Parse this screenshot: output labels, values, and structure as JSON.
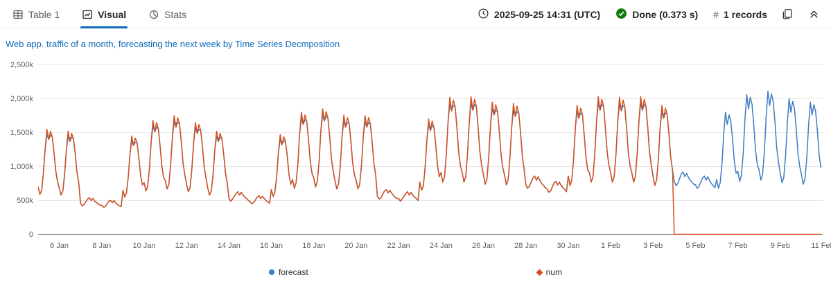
{
  "header": {
    "tabs": [
      {
        "label": "Table 1"
      },
      {
        "label": "Visual"
      },
      {
        "label": "Stats"
      }
    ],
    "timestamp": "2025-09-25 14:31 (UTC)",
    "status_text": "Done (0.373 s)",
    "hash_glyph": "#",
    "records_text": "1 records"
  },
  "chart_data": {
    "type": "line",
    "title": "Web app. traffic of a month, forecasting the next week by Time Series Decmposition",
    "unit": "thousands (k)",
    "y_axis": {
      "max_k": 2500,
      "tick_values_k": [
        0,
        500,
        1000,
        1500,
        2000,
        2500
      ],
      "tick_labels": [
        "0",
        "500k",
        "1,000k",
        "1,500k",
        "2,000k",
        "2,500k"
      ]
    },
    "x_axis": {
      "tick_labels": [
        "6 Jan",
        "8 Jan",
        "10 Jan",
        "12 Jan",
        "14 Jan",
        "16 Jan",
        "18 Jan",
        "20 Jan",
        "22 Jan",
        "24 Jan",
        "26 Jan",
        "28 Jan",
        "30 Jan",
        "1 Feb",
        "3 Feb",
        "5 Feb",
        "7 Feb",
        "9 Feb",
        "11 Feb"
      ],
      "first_tick_day_offset": 1,
      "tick_day_step": 2,
      "total_days": 37,
      "points_per_day": 12
    },
    "legend_position": "bottom",
    "series": [
      {
        "name": "forecast",
        "color": "#3d7bc4",
        "marker": "circle",
        "values_k": [
          700,
          590,
          650,
          900,
          1270,
          1470,
          1400,
          1460,
          1440,
          1210,
          930,
          780,
          680,
          580,
          640,
          880,
          1250,
          1440,
          1370,
          1430,
          1410,
          1190,
          910,
          760,
          460,
          420,
          440,
          480,
          520,
          540,
          500,
          530,
          490,
          470,
          450,
          430,
          430,
          400,
          410,
          450,
          490,
          500,
          470,
          500,
          460,
          440,
          420,
          410,
          650,
          550,
          610,
          840,
          1190,
          1380,
          1310,
          1360,
          1350,
          1130,
          870,
          730,
          760,
          640,
          710,
          970,
          1380,
          1600,
          1510,
          1580,
          1560,
          1310,
          1010,
          840,
          790,
          670,
          740,
          1020,
          1440,
          1660,
          1580,
          1650,
          1630,
          1370,
          1050,
          880,
          740,
          630,
          690,
          960,
          1350,
          1570,
          1490,
          1550,
          1530,
          1290,
          990,
          830,
          680,
          580,
          640,
          880,
          1250,
          1440,
          1370,
          1430,
          1410,
          1190,
          910,
          760,
          530,
          490,
          520,
          560,
          600,
          630,
          580,
          620,
          580,
          550,
          530,
          500,
          480,
          450,
          470,
          510,
          550,
          570,
          530,
          560,
          530,
          500,
          480,
          460,
          660,
          560,
          620,
          850,
          1210,
          1400,
          1320,
          1380,
          1370,
          1150,
          880,
          740,
          810,
          680,
          760,
          1040,
          1480,
          1710,
          1620,
          1690,
          1670,
          1400,
          1080,
          900,
          830,
          700,
          780,
          1070,
          1520,
          1760,
          1670,
          1740,
          1720,
          1440,
          1110,
          930,
          790,
          670,
          740,
          1020,
          1440,
          1670,
          1580,
          1650,
          1640,
          1370,
          1060,
          880,
          790,
          670,
          740,
          1020,
          1440,
          1660,
          1580,
          1650,
          1630,
          1370,
          1050,
          880,
          560,
          520,
          540,
          590,
          640,
          660,
          610,
          650,
          610,
          580,
          550,
          530,
          530,
          490,
          520,
          560,
          600,
          630,
          580,
          620,
          580,
          550,
          530,
          500,
          770,
          650,
          710,
          990,
          1390,
          1620,
          1530,
          1600,
          1580,
          1330,
          1020,
          850,
          910,
          770,
          850,
          1170,
          1660,
          1920,
          1820,
          1900,
          1880,
          1580,
          1210,
          1010,
          910,
          770,
          850,
          1180,
          1660,
          1930,
          1830,
          1910,
          1890,
          1580,
          1220,
          1020,
          880,
          740,
          820,
          1130,
          1600,
          1850,
          1760,
          1830,
          1810,
          1520,
          1170,
          980,
          870,
          730,
          810,
          1120,
          1580,
          1830,
          1740,
          1810,
          1790,
          1510,
          1160,
          970,
          730,
          680,
          710,
          770,
          830,
          860,
          800,
          850,
          790,
          750,
          720,
          690,
          670,
          620,
          640,
          700,
          760,
          780,
          730,
          770,
          720,
          690,
          660,
          630,
          860,
          720,
          800,
          1100,
          1560,
          1810,
          1710,
          1790,
          1770,
          1480,
          1140,
          950,
          910,
          770,
          850,
          1180,
          1660,
          1930,
          1830,
          1910,
          1890,
          1580,
          1220,
          1020,
          910,
          770,
          850,
          1170,
          1660,
          1920,
          1820,
          1900,
          1880,
          1580,
          1210,
          1010,
          910,
          770,
          850,
          1180,
          1660,
          1930,
          1830,
          1910,
          1890,
          1580,
          1220,
          1020,
          860,
          720,
          800,
          1100,
          1560,
          1810,
          1710,
          1790,
          1770,
          1480,
          1140,
          950,
          780,
          720,
          750,
          820,
          890,
          920,
          850,
          900,
          840,
          800,
          770,
          740,
          730,
          680,
          710,
          770,
          830,
          860,
          800,
          850,
          790,
          750,
          720,
          690,
          810,
          680,
          760,
          1040,
          1480,
          1800,
          1620,
          1760,
          1670,
          1400,
          1080,
          900,
          930,
          780,
          870,
          1190,
          1690,
          2060,
          1850,
          2020,
          1920,
          1610,
          1240,
          1030,
          950,
          800,
          890,
          1220,
          1730,
          2110,
          1900,
          2070,
          1960,
          1650,
          1270,
          1060,
          900,
          760,
          840,
          1160,
          1640,
          2000,
          1800,
          1960,
          1860,
          1560,
          1200,
          1000,
          880,
          740,
          820,
          1130,
          1600,
          1950,
          1760,
          1910,
          1810,
          1520,
          1170,
          980
        ]
      },
      {
        "name": "num",
        "color": "#d4511e",
        "marker": "diamond",
        "values_k": [
          700,
          590,
          650,
          900,
          1270,
          1550,
          1400,
          1520,
          1440,
          1210,
          930,
          780,
          680,
          580,
          640,
          880,
          1250,
          1520,
          1370,
          1490,
          1410,
          1190,
          910,
          760,
          460,
          420,
          440,
          480,
          520,
          540,
          500,
          530,
          490,
          470,
          450,
          430,
          430,
          400,
          410,
          450,
          490,
          500,
          470,
          500,
          460,
          440,
          420,
          410,
          650,
          550,
          610,
          840,
          1190,
          1450,
          1310,
          1420,
          1350,
          1130,
          870,
          730,
          760,
          640,
          710,
          970,
          1380,
          1680,
          1510,
          1650,
          1560,
          1310,
          1010,
          840,
          790,
          670,
          740,
          1020,
          1440,
          1750,
          1580,
          1720,
          1630,
          1370,
          1050,
          880,
          740,
          630,
          690,
          960,
          1350,
          1650,
          1490,
          1620,
          1530,
          1290,
          990,
          830,
          680,
          580,
          640,
          880,
          1250,
          1520,
          1370,
          1490,
          1410,
          1190,
          910,
          760,
          530,
          490,
          520,
          560,
          600,
          630,
          580,
          620,
          580,
          550,
          530,
          500,
          480,
          450,
          470,
          510,
          550,
          570,
          530,
          560,
          530,
          500,
          480,
          460,
          660,
          560,
          620,
          850,
          1210,
          1470,
          1320,
          1440,
          1370,
          1150,
          880,
          740,
          810,
          680,
          760,
          1040,
          1480,
          1800,
          1620,
          1760,
          1670,
          1400,
          1080,
          900,
          830,
          700,
          780,
          1070,
          1520,
          1850,
          1670,
          1810,
          1720,
          1440,
          1110,
          930,
          790,
          670,
          740,
          1020,
          1440,
          1760,
          1580,
          1720,
          1640,
          1370,
          1060,
          880,
          790,
          670,
          740,
          1020,
          1440,
          1750,
          1580,
          1720,
          1630,
          1370,
          1050,
          880,
          560,
          520,
          540,
          590,
          640,
          660,
          610,
          650,
          610,
          580,
          550,
          530,
          530,
          490,
          520,
          560,
          600,
          630,
          580,
          620,
          580,
          550,
          530,
          500,
          770,
          650,
          710,
          990,
          1390,
          1700,
          1530,
          1670,
          1580,
          1330,
          1020,
          850,
          910,
          770,
          850,
          1170,
          1660,
          2020,
          1820,
          1980,
          1880,
          1580,
          1210,
          1010,
          910,
          770,
          850,
          1180,
          1660,
          2030,
          1830,
          1990,
          1890,
          1580,
          1220,
          1020,
          880,
          740,
          820,
          1130,
          1600,
          1950,
          1760,
          1910,
          1810,
          1520,
          1170,
          980,
          870,
          730,
          810,
          1120,
          1580,
          1930,
          1740,
          1890,
          1790,
          1510,
          1160,
          970,
          730,
          680,
          710,
          770,
          830,
          860,
          800,
          850,
          790,
          750,
          720,
          690,
          670,
          620,
          640,
          700,
          760,
          780,
          730,
          770,
          720,
          690,
          660,
          630,
          860,
          720,
          800,
          1100,
          1560,
          1900,
          1710,
          1860,
          1770,
          1480,
          1140,
          950,
          910,
          770,
          850,
          1180,
          1660,
          2030,
          1830,
          1990,
          1890,
          1580,
          1220,
          1020,
          910,
          770,
          850,
          1170,
          1660,
          2020,
          1820,
          1980,
          1880,
          1580,
          1210,
          1010,
          910,
          770,
          850,
          1180,
          1660,
          2030,
          1830,
          1990,
          1890,
          1580,
          1220,
          1020,
          860,
          720,
          800,
          1100,
          1560,
          1900,
          1710,
          1860,
          1770,
          1480,
          1140,
          950,
          0,
          0,
          0,
          0,
          0,
          0,
          0,
          0,
          0,
          0,
          0,
          0,
          0,
          0,
          0,
          0,
          0,
          0,
          0,
          0,
          0,
          0,
          0,
          0,
          0,
          0,
          0,
          0,
          0,
          0,
          0,
          0,
          0,
          0,
          0,
          0,
          0,
          0,
          0,
          0,
          0,
          0,
          0,
          0,
          0,
          0,
          0,
          0,
          0,
          0,
          0,
          0,
          0,
          0,
          0,
          0,
          0,
          0,
          0,
          0,
          0,
          0,
          0,
          0,
          0,
          0,
          0,
          0,
          0,
          0,
          0,
          0,
          0,
          0,
          0,
          0,
          0,
          0,
          0,
          0,
          0,
          0,
          0,
          0
        ]
      }
    ]
  }
}
